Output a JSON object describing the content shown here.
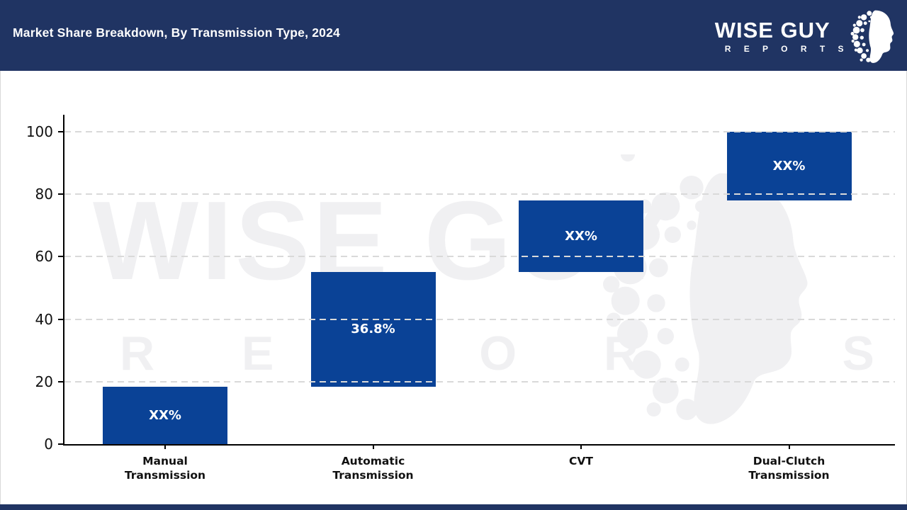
{
  "header": {
    "title": "Market Share Breakdown, By Transmission Type, 2024",
    "logo": {
      "name": "WISE GUY",
      "sub": "R E P O R T S"
    }
  },
  "watermark": {
    "name": "WISE GUY",
    "sub": "R E P O R T S"
  },
  "chart_data": {
    "type": "bar",
    "subtype": "waterfall",
    "title": "Market Share Breakdown, By Transmission Type, 2024",
    "categories": [
      [
        "Manual",
        "Transmission"
      ],
      [
        "Automatic",
        "Transmission"
      ],
      [
        "CVT"
      ],
      [
        "Dual-Clutch",
        "Transmission"
      ]
    ],
    "series": [
      {
        "name": "Market share (%)",
        "segments": [
          {
            "category": "Manual Transmission",
            "start": 0,
            "end": 18.4,
            "value": 18.4,
            "label": "XX%"
          },
          {
            "category": "Automatic Transmission",
            "start": 18.4,
            "end": 55.2,
            "value": 36.8,
            "label": "36.8%"
          },
          {
            "category": "CVT",
            "start": 55.2,
            "end": 78.0,
            "value": 22.8,
            "label": "XX%"
          },
          {
            "category": "Dual-Clutch Transmission",
            "start": 78.0,
            "end": 100.0,
            "value": 22.0,
            "label": "XX%"
          }
        ]
      }
    ],
    "xlabel": "",
    "ylabel": "",
    "ylim": [
      0,
      100
    ],
    "yticks": [
      0,
      20,
      40,
      60,
      80,
      100
    ],
    "grid": {
      "horizontal": true,
      "style": "dashed",
      "on_top": true,
      "color": "#d9d9d9"
    },
    "legend": "none",
    "colors": {
      "bar": "#0a4296",
      "bar_label_text": "#ffffff",
      "header_bg": "#203463",
      "axis": "#000000"
    }
  }
}
